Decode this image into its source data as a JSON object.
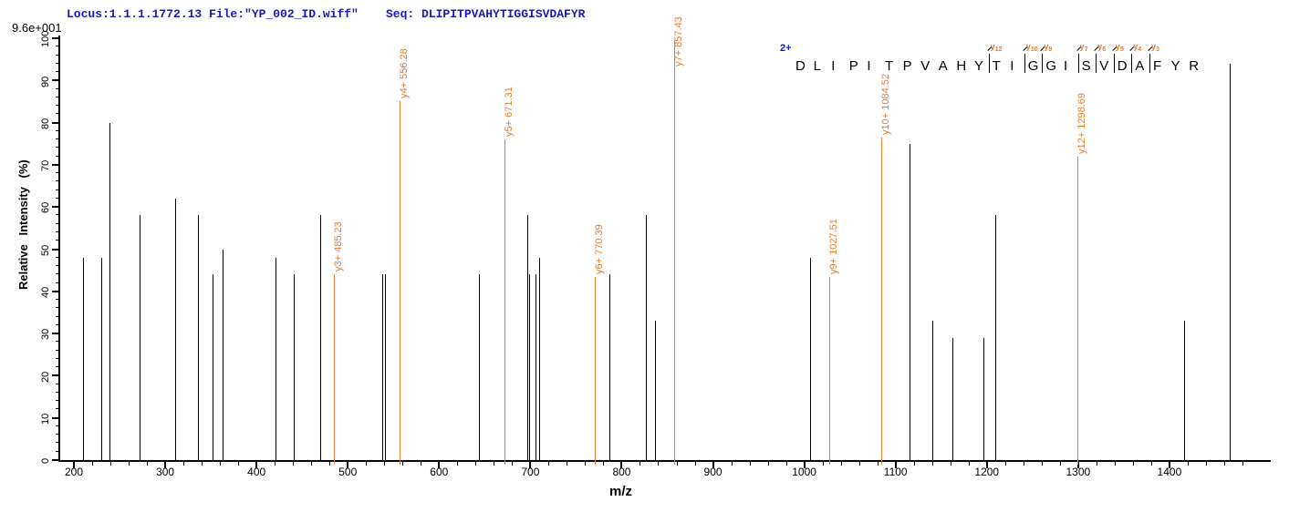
{
  "header": {
    "locus_file": "Locus:1.1.1.1772.13 File:\"YP_002_ID.wiff\"",
    "seq": "Seq: DLIPITPVAHYTIGGISVDAFYR",
    "scale_note": "9.6e+001"
  },
  "chart_data": {
    "type": "bar",
    "subtype": "ms2-fragment-stick-spectrum",
    "title": "",
    "xlabel": "m/z",
    "ylabel": "Relative Intensity (%)",
    "xlim": [
      184,
      1510
    ],
    "ylim": [
      0,
      100
    ],
    "grid": false,
    "x_tick_labels": [
      200,
      300,
      400,
      500,
      600,
      700,
      800,
      900,
      1000,
      1100,
      1200,
      1300,
      1400
    ],
    "x_minor_step": 20,
    "x_minor_range": [
      200,
      1480
    ],
    "y_tick_labels": [
      0,
      10,
      20,
      30,
      40,
      50,
      60,
      70,
      80,
      90,
      100
    ],
    "y_major_step": 10,
    "y_minor_step": 2,
    "colors": {
      "peak": "#000000",
      "annotated_peak": "#e97c33",
      "header_text": "#1a1ab8",
      "charge_label": "#0022dd"
    },
    "precursor_charge": "2+",
    "peaks": [
      {
        "mz": 210,
        "intensity": 48
      },
      {
        "mz": 230,
        "intensity": 48
      },
      {
        "mz": 239,
        "intensity": 80
      },
      {
        "mz": 272,
        "intensity": 58
      },
      {
        "mz": 311,
        "intensity": 62
      },
      {
        "mz": 336,
        "intensity": 58
      },
      {
        "mz": 352,
        "intensity": 44
      },
      {
        "mz": 363,
        "intensity": 50
      },
      {
        "mz": 421,
        "intensity": 48
      },
      {
        "mz": 441,
        "intensity": 44
      },
      {
        "mz": 470,
        "intensity": 58
      },
      {
        "mz": 485.23,
        "intensity": 44,
        "label": "y3+ 485.23"
      },
      {
        "mz": 538,
        "intensity": 44
      },
      {
        "mz": 541,
        "intensity": 44
      },
      {
        "mz": 556.28,
        "intensity": 85,
        "label": "y4+ 556.28"
      },
      {
        "mz": 644,
        "intensity": 44
      },
      {
        "mz": 671.31,
        "intensity": 76,
        "label": "y5+ 671.31"
      },
      {
        "mz": 697,
        "intensity": 58
      },
      {
        "mz": 699,
        "intensity": 44
      },
      {
        "mz": 706,
        "intensity": 44
      },
      {
        "mz": 710,
        "intensity": 48
      },
      {
        "mz": 770.39,
        "intensity": 43.5,
        "label": "y6+ 770.39"
      },
      {
        "mz": 787,
        "intensity": 44
      },
      {
        "mz": 827,
        "intensity": 58
      },
      {
        "mz": 837,
        "intensity": 33
      },
      {
        "mz": 857.43,
        "intensity": 99.4,
        "label": "y7+ 857.43"
      },
      {
        "mz": 1006,
        "intensity": 48
      },
      {
        "mz": 1027.51,
        "intensity": 43.5,
        "label": "y9+ 1027.51"
      },
      {
        "mz": 1084.52,
        "intensity": 76.5,
        "label": "y10+ 1084.52"
      },
      {
        "mz": 1115,
        "intensity": 75
      },
      {
        "mz": 1140,
        "intensity": 33
      },
      {
        "mz": 1162,
        "intensity": 29
      },
      {
        "mz": 1196,
        "intensity": 29
      },
      {
        "mz": 1209,
        "intensity": 58
      },
      {
        "mz": 1298.69,
        "intensity": 72,
        "label": "y12+ 1298.69"
      },
      {
        "mz": 1416,
        "intensity": 33
      },
      {
        "mz": 1466,
        "intensity": 94
      }
    ],
    "sequence": {
      "residues": [
        "D",
        "L",
        "I",
        "P",
        "I",
        "T",
        "P",
        "V",
        "A",
        "H",
        "Y",
        "T",
        "I",
        "G",
        "G",
        "I",
        "S",
        "V",
        "D",
        "A",
        "F",
        "Y",
        "R"
      ],
      "fragments": [
        {
          "index": 11,
          "ion": "y",
          "num": 12
        },
        {
          "index": 13,
          "ion": "y",
          "num": 10
        },
        {
          "index": 14,
          "ion": "y",
          "num": 9
        },
        {
          "index": 16,
          "ion": "y",
          "num": 7
        },
        {
          "index": 17,
          "ion": "y",
          "num": 6
        },
        {
          "index": 18,
          "ion": "y",
          "num": 5
        },
        {
          "index": 19,
          "ion": "y",
          "num": 4
        },
        {
          "index": 20,
          "ion": "y",
          "num": 3
        }
      ]
    }
  }
}
